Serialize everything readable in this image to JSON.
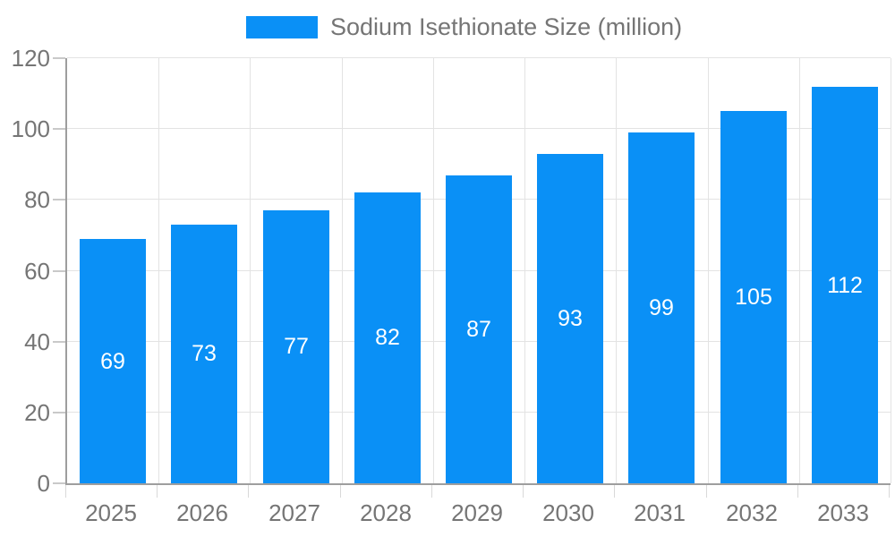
{
  "chart_data": {
    "type": "bar",
    "title": "Sodium Isethionate Size (million)",
    "categories": [
      "2025",
      "2026",
      "2027",
      "2028",
      "2029",
      "2030",
      "2031",
      "2032",
      "2033"
    ],
    "values": [
      69,
      73,
      77,
      82,
      87,
      93,
      99,
      105,
      112
    ],
    "series_name": "Sodium Isethionate Size (million)",
    "xlabel": "",
    "ylabel": "",
    "ylim": [
      0,
      120
    ],
    "yticks": [
      0,
      20,
      40,
      60,
      80,
      100,
      120
    ],
    "grid": true,
    "legend_position": "top",
    "bar_labels": "centered-white"
  },
  "legend": {
    "label": "Sodium Isethionate Size (million)"
  },
  "colors": {
    "bar": "#0a90f6",
    "bar_label": "#ffffff",
    "axis": "#9e9e9e",
    "gridline": "#e3e3e3",
    "y_tick": "#c9c9c9",
    "x_tick": "#d9d9d9",
    "text": "#757575",
    "background": "#ffffff"
  }
}
